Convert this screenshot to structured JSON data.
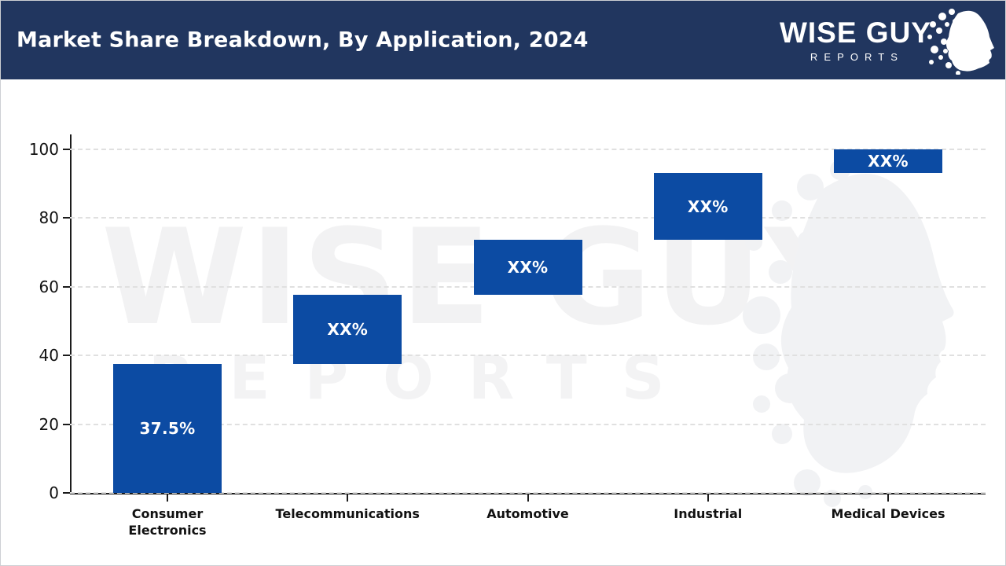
{
  "header": {
    "title": "Market Share Breakdown, By Application, 2024",
    "logo": {
      "wordmark": "WISE GUY",
      "subtext": "REPORTS",
      "face_icon": "dotted-face-profile"
    }
  },
  "watermark": {
    "line1": "WISE GUY",
    "line2": "REPORTS",
    "face_icon": "dotted-face-profile"
  },
  "chart_data": {
    "type": "bar",
    "variant": "waterfall",
    "title": "Market Share Breakdown, By Application, 2024",
    "xlabel": "",
    "ylabel": "",
    "ylim": [
      0,
      105
    ],
    "yticks": [
      0,
      20,
      40,
      60,
      80,
      100
    ],
    "grid": "horizontal-dashed",
    "legend": "none",
    "categories": [
      "Consumer Electronics",
      "Telecommunications",
      "Automotive",
      "Industrial",
      "Medical Devices"
    ],
    "category_lines": [
      [
        "Consumer",
        "Electronics"
      ],
      [
        "Telecommunications"
      ],
      [
        "Automotive"
      ],
      [
        "Industrial"
      ],
      [
        "Medical Devices"
      ]
    ],
    "series": [
      {
        "name": "Market Share",
        "segments": [
          {
            "category": "Consumer Electronics",
            "start": 0,
            "end": 37.5,
            "value": 37.5,
            "value_label": "37.5%"
          },
          {
            "category": "Telecommunications",
            "start": 37.5,
            "end": 57.5,
            "value": 20,
            "value_label": "XX%"
          },
          {
            "category": "Automotive",
            "start": 57.5,
            "end": 73.5,
            "value": 16,
            "value_label": "XX%"
          },
          {
            "category": "Industrial",
            "start": 73.5,
            "end": 93,
            "value": 19.5,
            "value_label": "XX%"
          },
          {
            "category": "Medical Devices",
            "start": 93,
            "end": 100,
            "value": 7,
            "value_label": "XX%"
          }
        ]
      }
    ],
    "colors": {
      "bar": "#0c4ba3",
      "bar_label": "#ffffff",
      "grid": "#e0e0e0",
      "axis": "#1b1b1b",
      "tick_text": "#111111",
      "header_bg": "#21365f",
      "header_text": "#ffffff",
      "watermark": "#f2f2f3"
    }
  }
}
